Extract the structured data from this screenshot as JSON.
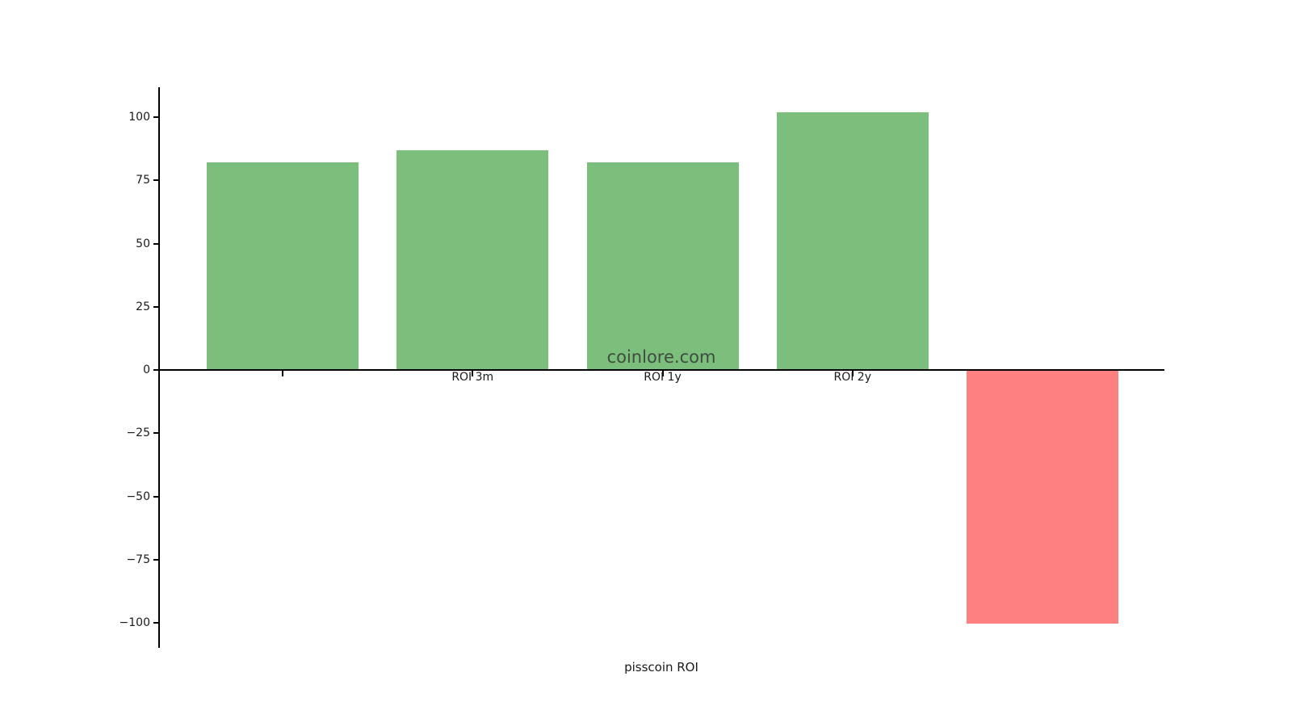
{
  "watermark": "coinlore.com",
  "colors": {
    "positive_bar": "#7cbe7c",
    "negative_bar": "#ff8080",
    "axis": "#000000",
    "watermark_text": "#2d2d2d"
  },
  "chart_data": {
    "type": "bar",
    "title": "",
    "xlabel": "pisscoin ROI",
    "ylabel": "",
    "categories": [
      "",
      "ROI 3m",
      "ROI 1y",
      "ROI 2y",
      ""
    ],
    "values": [
      82,
      87,
      82,
      102,
      -100
    ],
    "bar_colors": [
      "#7cbe7c",
      "#7cbe7c",
      "#7cbe7c",
      "#7cbe7c",
      "#ff8080"
    ],
    "y_ticks": [
      100,
      75,
      50,
      25,
      0,
      -25,
      -50,
      -75,
      -100
    ],
    "ylim": [
      -110,
      112
    ],
    "grid": false,
    "legend": null,
    "watermark": "coinlore.com"
  }
}
